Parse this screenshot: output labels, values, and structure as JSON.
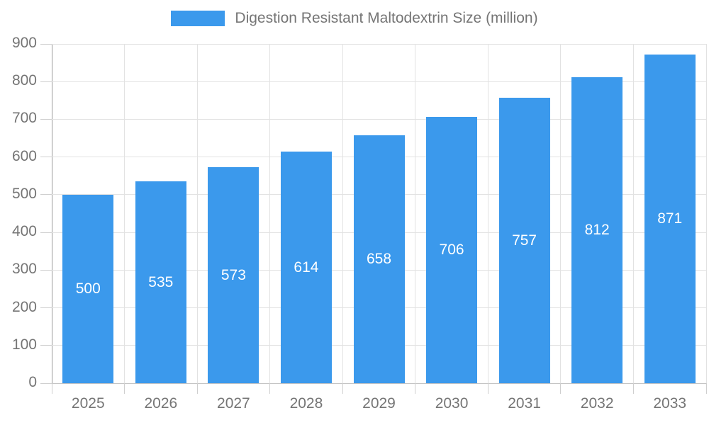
{
  "legend": {
    "label": "Digestion Resistant Maltodextrin Size (million)"
  },
  "chart_data": {
    "type": "bar",
    "title": "Digestion Resistant Maltodextrin Size (million)",
    "categories": [
      "2025",
      "2026",
      "2027",
      "2028",
      "2029",
      "2030",
      "2031",
      "2032",
      "2033"
    ],
    "values": [
      500,
      535,
      573,
      614,
      658,
      706,
      757,
      812,
      871
    ],
    "xlabel": "",
    "ylabel": "",
    "ylim": [
      0,
      900
    ],
    "ytick_step": 100,
    "grid": true,
    "legend_position": "top-center",
    "bar_color": "#3B99EC",
    "value_label_color": "#FFFFFF",
    "axis_text_color": "#757575",
    "grid_color": "#E2E2E2"
  }
}
